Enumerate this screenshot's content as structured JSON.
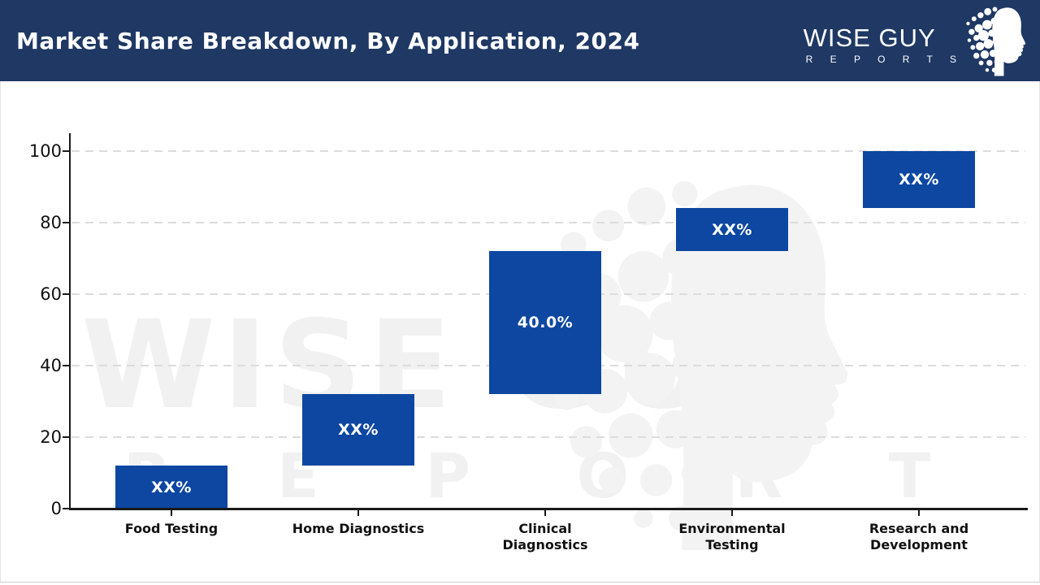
{
  "header": {
    "title": "Market Share Breakdown, By Application, 2024",
    "logo_line1": "WISE GUY",
    "logo_line2": "R E P O R T S"
  },
  "watermark": {
    "line1": "WISE GUY",
    "line2": "R E P O R T S"
  },
  "chart_data": {
    "type": "bar",
    "variant": "waterfall",
    "title": "Market Share Breakdown, By Application, 2024",
    "categories": [
      "Food Testing",
      "Home Diagnostics",
      "Clinical Diagnostics",
      "Environmental Testing",
      "Research and Development"
    ],
    "category_label_lines": [
      [
        "Food Testing"
      ],
      [
        "Home Diagnostics"
      ],
      [
        "Clinical",
        "Diagnostics"
      ],
      [
        "Environmental",
        "Testing"
      ],
      [
        "Research and",
        "Development"
      ]
    ],
    "series": [
      {
        "name": "Market Share",
        "segment_start": [
          0,
          12,
          32,
          72,
          84
        ],
        "segment_end": [
          12,
          32,
          72,
          84,
          100
        ],
        "segment_height": [
          12,
          20,
          40,
          12,
          16
        ]
      }
    ],
    "bar_labels": [
      "XX%",
      "XX%",
      "40.0%",
      "XX%",
      "XX%"
    ],
    "yticks": [
      0,
      20,
      40,
      60,
      80,
      100
    ],
    "ylim": [
      0,
      105
    ],
    "xlabel": "",
    "ylabel": "",
    "grid": "horizontal-dashed",
    "legend": "none",
    "bar_color": "#0d47a1",
    "bar_label_color": "#ffffff"
  },
  "colors": {
    "header_bg": "#1f3864",
    "bar": "#0d47a1",
    "axis": "#1a1a1a",
    "gridline": "#dcdcdc",
    "watermark": "#f1f1f1",
    "page_bg": "#ffffff",
    "hairline": "#cccccc"
  }
}
